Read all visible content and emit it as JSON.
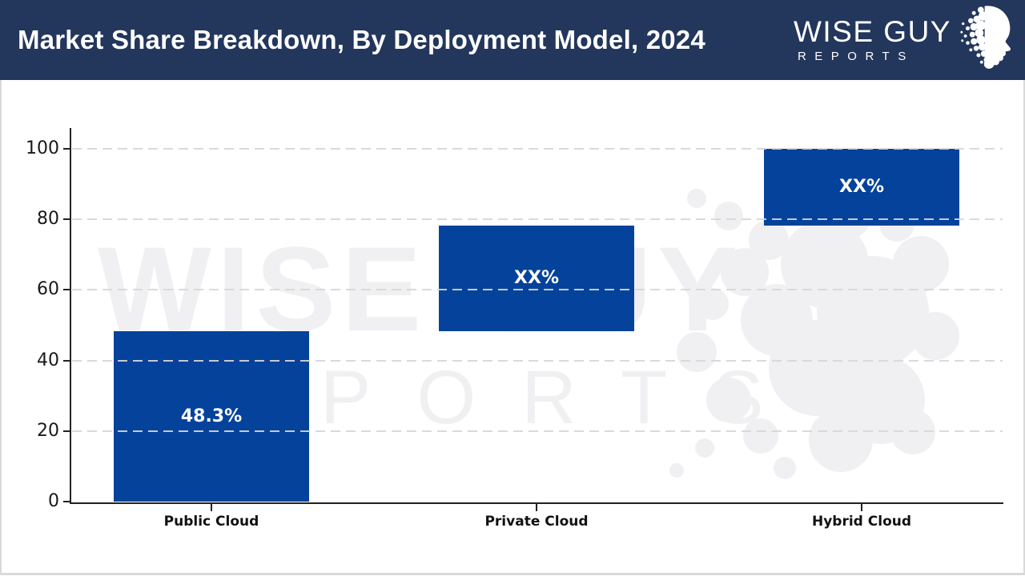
{
  "header": {
    "title": "Market Share Breakdown, By Deployment Model, 2024",
    "logo": {
      "line1": "WISE GUY",
      "line2": "REPORTS"
    }
  },
  "watermark": {
    "line1": "WISE GUY",
    "line2": "REPORTS"
  },
  "colors": {
    "header_bg": "#23365c",
    "bar_blue": "#04429b",
    "gridline": "#d9d9d9",
    "axis": "#222222",
    "watermark": "#f0f0f2",
    "frame_border": "#d9d9d9",
    "bar_label_text": "#ffffff"
  },
  "chart_data": {
    "type": "bar",
    "subtype": "waterfall-stacked-breakdown",
    "title": "Market Share Breakdown, By Deployment Model, 2024",
    "categories": [
      "Public Cloud",
      "Private Cloud",
      "Hybrid Cloud"
    ],
    "bars": [
      {
        "category": "Public Cloud",
        "start": 0,
        "end": 48.3,
        "value": 48.3,
        "label": "48.3%"
      },
      {
        "category": "Private Cloud",
        "start": 48.3,
        "end": 78.3,
        "value": 30.0,
        "label": "XX%"
      },
      {
        "category": "Hybrid Cloud",
        "start": 78.3,
        "end": 100,
        "value": 21.7,
        "label": "XX%"
      }
    ],
    "yticks": [
      0,
      20,
      40,
      60,
      80,
      100
    ],
    "ylim": [
      0,
      106
    ],
    "xlabel": "",
    "ylabel": "",
    "grid": "horizontal-dashed",
    "legend_position": "none",
    "bar_color": "#04429b"
  }
}
